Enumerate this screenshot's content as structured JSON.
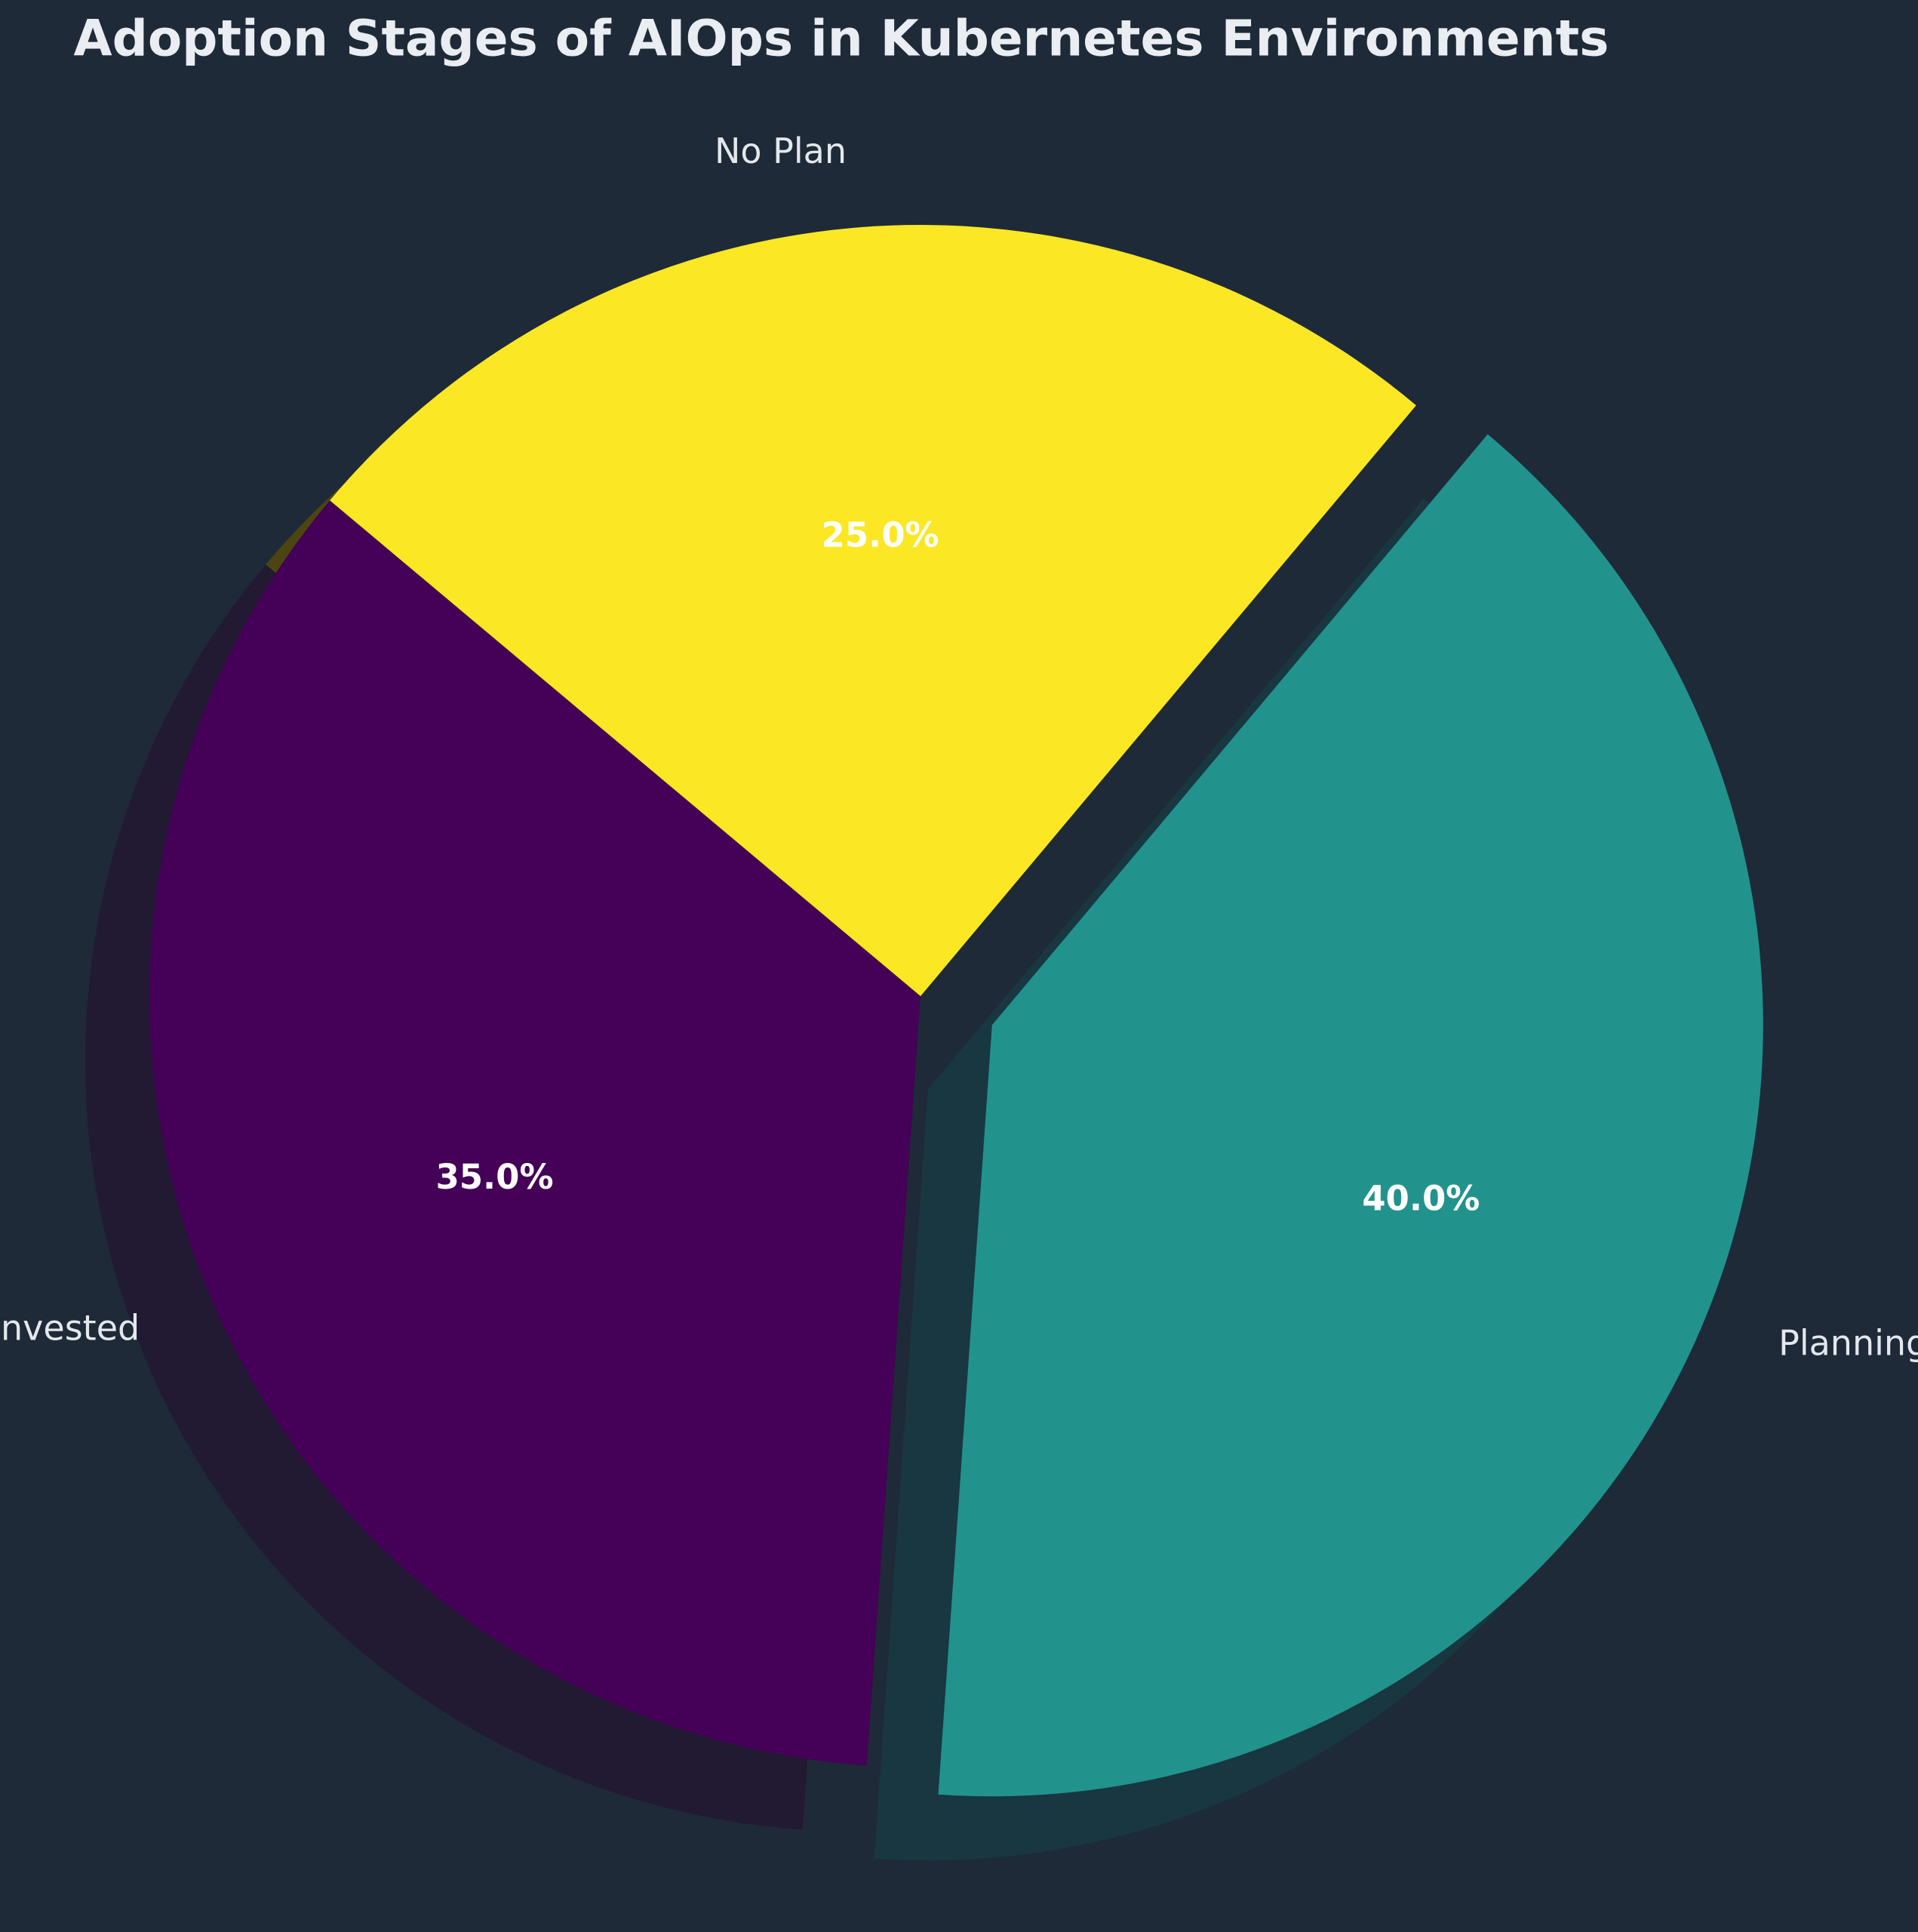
{
  "colors": {
    "background": "#1e2a38",
    "title_text": "#eaedf1",
    "label_text": "#e4e8ec",
    "pct_text": "#ffffff"
  },
  "chart_data": {
    "type": "pie",
    "title": "Adoption Stages of AIOps in Kubernetes Environments",
    "labels": [
      "No Plan",
      "Invested",
      "Planning"
    ],
    "values": [
      25.0,
      35.0,
      40.0
    ],
    "pct_labels": [
      "25.0%",
      "35.0%",
      "40.0%"
    ],
    "colors": [
      "#fbe724",
      "#440157",
      "#21938c"
    ],
    "shadow_colors": [
      "#4c4511",
      "#221933",
      "#183740"
    ],
    "explode": [
      0,
      0,
      0.1
    ],
    "startangle": 50,
    "counterclock": true,
    "shadow": true,
    "labeldistance": 1.1,
    "pctdistance": 0.6,
    "legend": "none"
  }
}
